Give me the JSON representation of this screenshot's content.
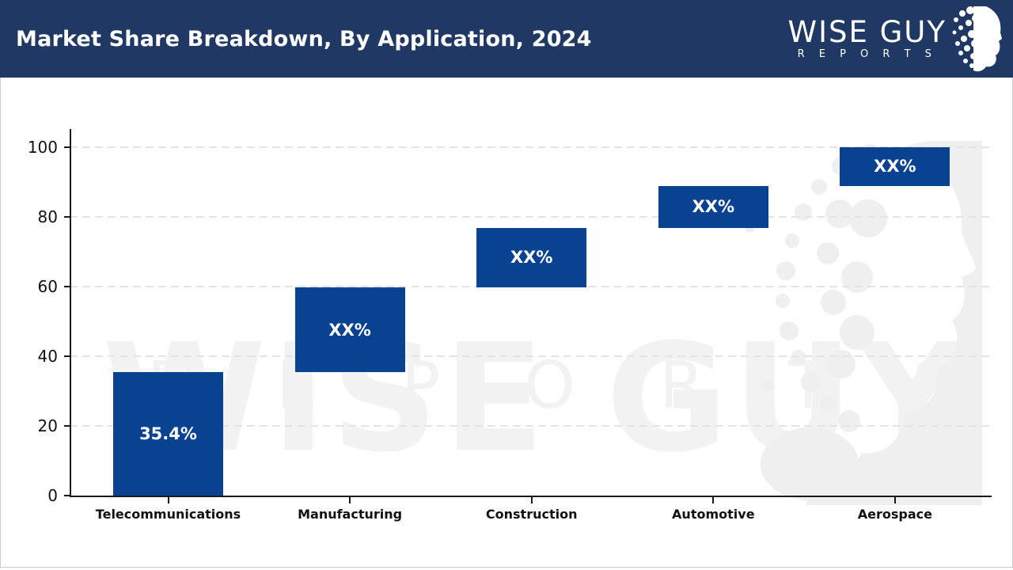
{
  "header": {
    "title": "Market Share Breakdown, By Application, 2024",
    "bg_color": "#1f3864",
    "logo": {
      "name": "WISE GUY",
      "tagline": "R E P O R T S"
    }
  },
  "watermark": {
    "line1": "WISE GUY",
    "line2": "R E P O R T S"
  },
  "chart_data": {
    "type": "bar",
    "subtype": "waterfall",
    "title": "Market Share Breakdown, By Application, 2024",
    "categories": [
      "Telecommunications",
      "Manufacturing",
      "Construction",
      "Automotive",
      "Aerospace"
    ],
    "series": [
      {
        "name": "Market Share (%)",
        "segment_start": [
          0,
          35.4,
          59.8,
          76.8,
          88.9
        ],
        "segment_end": [
          35.4,
          59.8,
          76.8,
          88.9,
          100
        ],
        "segment_value": [
          35.4,
          24.4,
          17.0,
          12.1,
          11.1
        ]
      }
    ],
    "bar_labels": [
      "35.4%",
      "XX%",
      "XX%",
      "XX%",
      "XX%"
    ],
    "xlabel": "",
    "ylabel": "",
    "ylim": [
      0,
      105
    ],
    "yticks": [
      0,
      20,
      40,
      60,
      80,
      100
    ],
    "grid": "horizontal-dashed",
    "legend": "none",
    "bar_color": "#0a4292",
    "bar_label_color": "#ffffff",
    "axis_color": "#1a1a1a"
  }
}
